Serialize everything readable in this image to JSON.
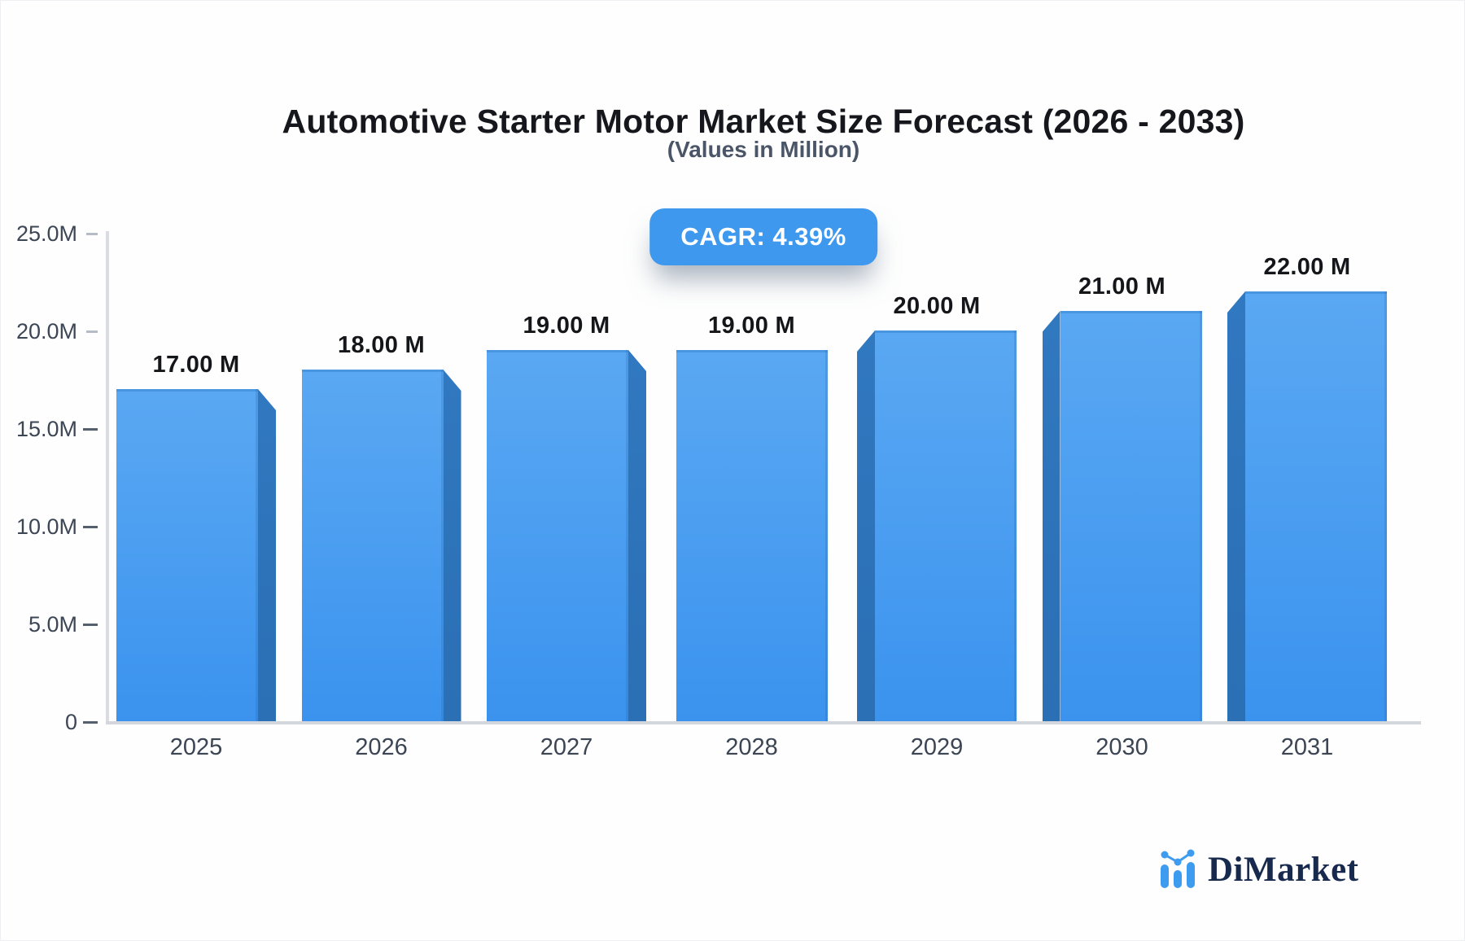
{
  "title": "Automotive Starter Motor Market Size Forecast (2026 - 2033)",
  "subtitle": "(Values in Million)",
  "badge": {
    "label": "CAGR: 4.39%"
  },
  "logo": {
    "text": "DiMarket"
  },
  "colors": {
    "accent": "#3d98ee",
    "bar_top": "#5aa8f3",
    "bar_bottom": "#3b93ee",
    "bar_side_top": "#3078c0",
    "bar_side_bottom": "#2b6fb4",
    "axis": "#d6d9de",
    "title_text": "#15171c",
    "label_text": "#3c4554",
    "logo_blue": "#3d9bf0",
    "logo_navy": "#17294d"
  },
  "chart_data": {
    "type": "bar",
    "categories": [
      "2025",
      "2026",
      "2027",
      "2028",
      "2029",
      "2030",
      "2031"
    ],
    "values": [
      17,
      18,
      19,
      19,
      20,
      21,
      22
    ],
    "value_labels": [
      "17.00 M",
      "18.00 M",
      "19.00 M",
      "19.00 M",
      "20.00 M",
      "21.00 M",
      "22.00 M"
    ],
    "unit": "Million",
    "title": "Automotive Starter Motor Market Size Forecast (2026 - 2033)",
    "xlabel": "",
    "ylabel": "",
    "ylim": [
      0,
      25
    ],
    "yticks": [
      "0",
      "5.0M",
      "10.0M",
      "15.0M",
      "20.0M",
      "25.0M"
    ],
    "ytick_strong": [
      true,
      true,
      true,
      true,
      false,
      false
    ],
    "grid": false,
    "legend": "none",
    "style": "3d-extruded-bars, extrusion toward center vanishing point"
  }
}
